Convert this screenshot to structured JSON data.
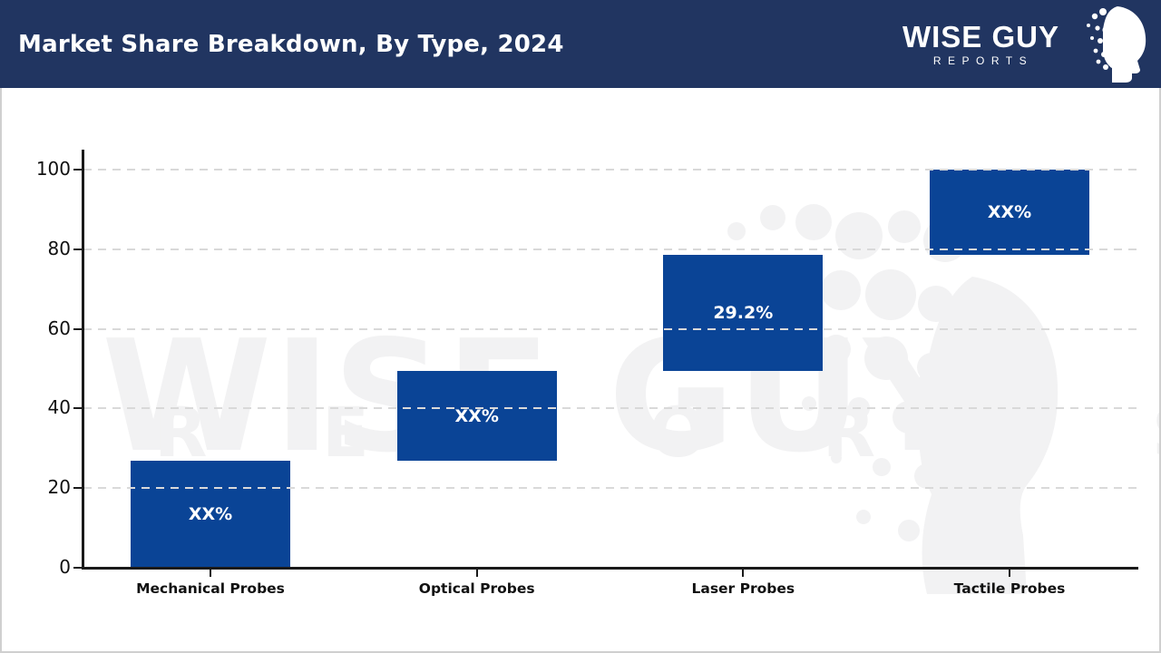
{
  "header": {
    "title": "Market Share Breakdown, By Type, 2024",
    "logo": {
      "line1": "WISE GUY",
      "line2": "REPORTS"
    }
  },
  "watermark": {
    "line1": "WISE GUY",
    "line2": "R E P O R T S"
  },
  "chart_data": {
    "type": "bar",
    "subtype": "waterfall-style floating segment bars",
    "title": "Market Share Breakdown, By Type, 2024",
    "categories": [
      "Mechanical Probes",
      "Optical Probes",
      "Laser Probes",
      "Tactile Probes"
    ],
    "bars": [
      {
        "category": "Mechanical Probes",
        "start": 0,
        "end": 26.9,
        "size": 26.9,
        "label": "XX%"
      },
      {
        "category": "Optical Probes",
        "start": 26.9,
        "end": 49.4,
        "size": 22.5,
        "label": "XX%"
      },
      {
        "category": "Laser Probes",
        "start": 49.4,
        "end": 78.6,
        "size": 29.2,
        "label": "29.2%"
      },
      {
        "category": "Tactile Probes",
        "start": 78.6,
        "end": 100,
        "size": 21.4,
        "label": "XX%"
      }
    ],
    "xlabel": "",
    "ylabel": "",
    "yticks": [
      0,
      20,
      40,
      60,
      80,
      100
    ],
    "ylim": [
      0,
      105
    ],
    "grid": "horizontal dashed gridlines drawn above bars",
    "legend": "none",
    "bar_color": "#0a4496"
  },
  "colors": {
    "header_bg": "#213561",
    "bar": "#0a4496",
    "gridline": "#d9d9d9",
    "axis": "#1a1a1a",
    "watermark": "#f2f2f3",
    "page_border": "#cfcfcf",
    "title_text": "#ffffff",
    "tick_text": "#111111"
  }
}
